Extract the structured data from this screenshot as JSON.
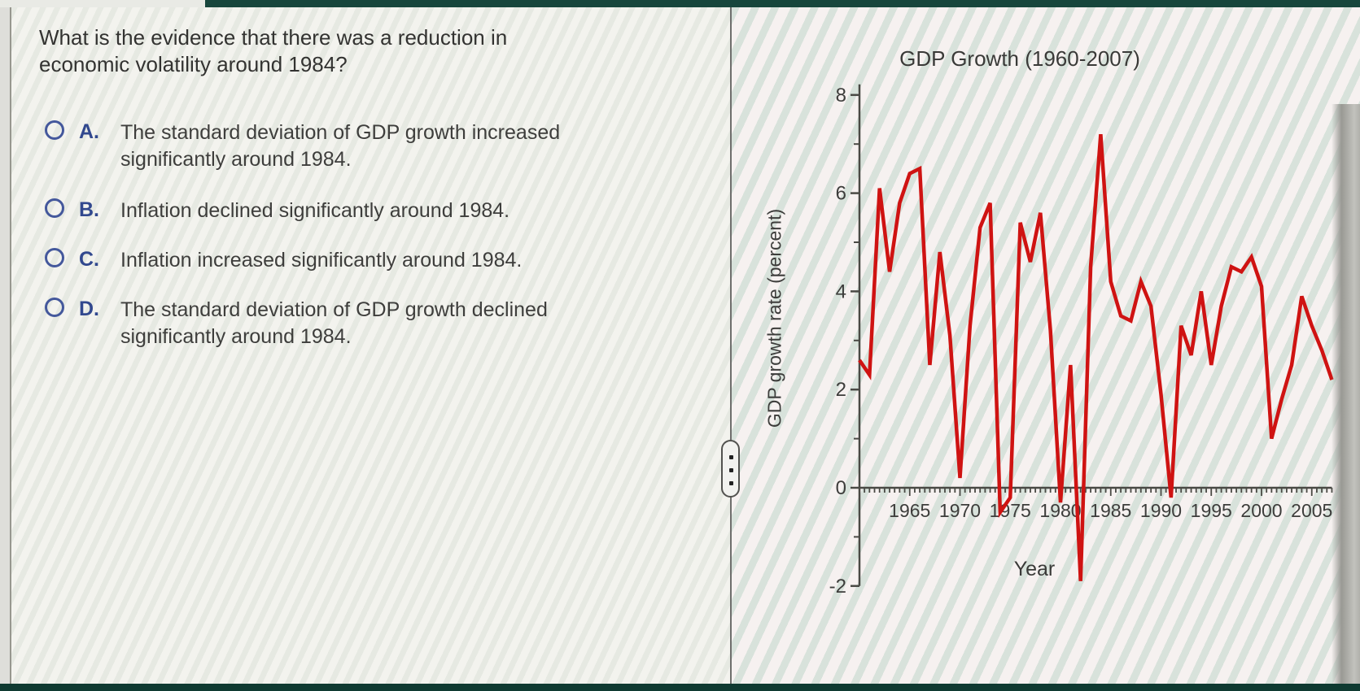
{
  "question": {
    "text": "What is the evidence that there was a reduction in economic volatility around 1984?",
    "options": [
      {
        "letter": "A.",
        "text": "The standard deviation of GDP growth increased significantly around 1984.",
        "selected": false
      },
      {
        "letter": "B.",
        "text": "Inflation declined significantly around 1984.",
        "selected": false
      },
      {
        "letter": "C.",
        "text": "Inflation increased significantly around 1984.",
        "selected": false
      },
      {
        "letter": "D.",
        "text": "The standard deviation of GDP growth declined significantly around 1984.",
        "selected": false
      }
    ]
  },
  "chart_data": {
    "type": "line",
    "title": "GDP Growth (1960-2007)",
    "xlabel": "Year",
    "ylabel": "GDP growth rate (percent)",
    "series_name": "GDP growth rate",
    "line_color": "#cf1312",
    "grid": false,
    "legend": false,
    "xlim": [
      1960,
      2007
    ],
    "ylim": [
      -2,
      8
    ],
    "y_ticks_major": [
      8,
      6,
      4,
      2,
      0,
      -2
    ],
    "y_ticks_minor": [
      7,
      5,
      3,
      1,
      -1
    ],
    "x_tick_years": [
      1965,
      1970,
      1975,
      1980,
      1985,
      1990,
      1995,
      2000,
      2005
    ],
    "x": [
      1960,
      1961,
      1962,
      1963,
      1964,
      1965,
      1966,
      1967,
      1968,
      1969,
      1970,
      1971,
      1972,
      1973,
      1974,
      1975,
      1976,
      1977,
      1978,
      1979,
      1980,
      1981,
      1982,
      1983,
      1984,
      1985,
      1986,
      1987,
      1988,
      1989,
      1990,
      1991,
      1992,
      1993,
      1994,
      1995,
      1996,
      1997,
      1998,
      1999,
      2000,
      2001,
      2002,
      2003,
      2004,
      2005,
      2006,
      2007
    ],
    "values": [
      2.6,
      2.3,
      6.1,
      4.4,
      5.8,
      6.4,
      6.5,
      2.5,
      4.8,
      3.1,
      0.2,
      3.3,
      5.3,
      5.8,
      -0.5,
      -0.2,
      5.4,
      4.6,
      5.6,
      3.2,
      -0.3,
      2.5,
      -1.9,
      4.5,
      7.2,
      4.2,
      3.5,
      3.4,
      4.2,
      3.7,
      1.9,
      -0.2,
      3.3,
      2.7,
      4.0,
      2.5,
      3.7,
      4.5,
      4.4,
      4.7,
      4.1,
      1.0,
      1.8,
      2.5,
      3.9,
      3.3,
      2.8,
      2.2
    ]
  }
}
